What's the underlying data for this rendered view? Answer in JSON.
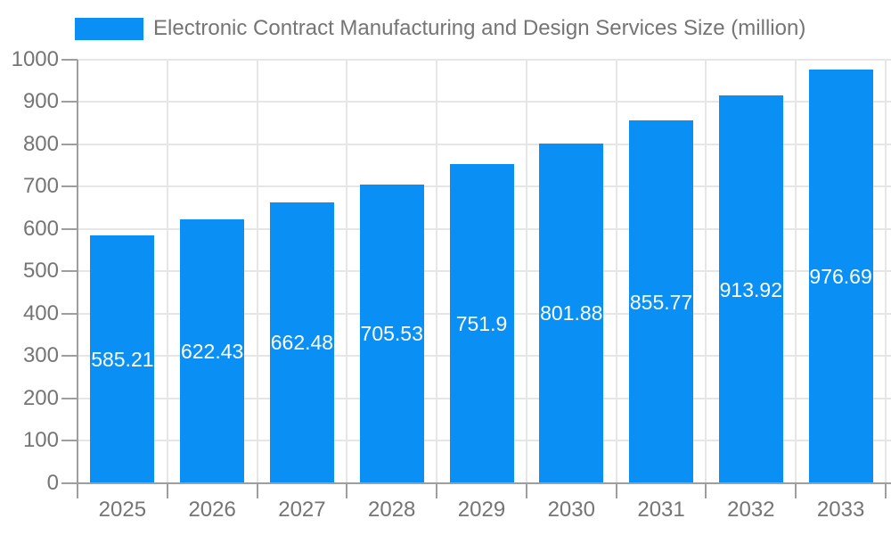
{
  "chart_data": {
    "type": "bar",
    "title": "Electronic Contract Manufacturing and Design Services Size (million)",
    "xlabel": "",
    "ylabel": "",
    "categories": [
      "2025",
      "2026",
      "2027",
      "2028",
      "2029",
      "2030",
      "2031",
      "2032",
      "2033"
    ],
    "series": [
      {
        "name": "Electronic Contract Manufacturing and Design Services Size (million)",
        "values": [
          585.21,
          622.43,
          662.48,
          705.53,
          751.9,
          801.88,
          855.77,
          913.92,
          976.69
        ],
        "value_labels": [
          "585.21",
          "622.43",
          "662.48",
          "705.53",
          "751.9",
          "801.88",
          "855.77",
          "913.92",
          "976.69"
        ]
      }
    ],
    "ylim": [
      0,
      1000
    ],
    "ytick_labels": [
      "0",
      "100",
      "200",
      "300",
      "400",
      "500",
      "600",
      "700",
      "800",
      "900",
      "1000"
    ],
    "grid": "both",
    "legend_position": "top-left",
    "value_label_position": "center-of-bar",
    "colors": {
      "bar": "#0a90f4",
      "grid": "#e6e6e6",
      "axis": "#9e9e9e",
      "tick": "#9e9e9e",
      "text": "#757575",
      "value_text": "#ffffff",
      "background": "#ffffff"
    }
  }
}
